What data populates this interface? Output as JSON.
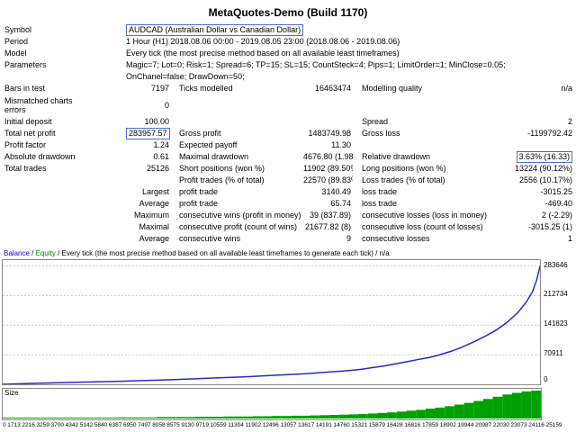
{
  "title": "MetaQuotes-Demo (Build 1170)",
  "report": {
    "symbol": {
      "label": "Symbol",
      "value": "AUDCAD (Australian Dollar vs Canadian Dollar)"
    },
    "period": {
      "label": "Period",
      "value": "1 Hour (H1) 2018.08.06 00:00 - 2019.08.05 23:00 (2018.08.06 - 2019.08.06)"
    },
    "model": {
      "label": "Model",
      "value": "Every tick (the most precise method based on all available least timeframes)"
    },
    "parameters": {
      "label": "Parameters",
      "value": "Magic=7; Lot=0; Risk=1; Spread=6; TP=15; SL=15; CountSteck=4; Pips=1; LimitOrder=1; MinClose=0.05; OnChanel=false; DrawDown=50;"
    },
    "bars_in_test": {
      "label": "Bars in test",
      "value": "7197"
    },
    "ticks_modelled": {
      "label": "Ticks modelled",
      "value": "16463474"
    },
    "modelling_quality": {
      "label": "Modelling quality",
      "value": "n/a"
    },
    "mismatched": {
      "label": "Mismatched charts errors",
      "value": "0"
    },
    "initial_deposit": {
      "label": "Initial deposit",
      "value": "100.00"
    },
    "spread": {
      "label": "Spread",
      "value": "2"
    },
    "total_net_profit": {
      "label": "Total net profit",
      "value": "283957.57"
    },
    "gross_profit": {
      "label": "Gross profit",
      "value": "1483749.98"
    },
    "gross_loss": {
      "label": "Gross loss",
      "value": "-1199792.42"
    },
    "profit_factor": {
      "label": "Profit factor",
      "value": "1.24"
    },
    "expected_payoff": {
      "label": "Expected payoff",
      "value": "11.30"
    },
    "absolute_drawdown": {
      "label": "Absolute drawdown",
      "value": "0.61"
    },
    "maximal_drawdown": {
      "label": "Maximal drawdown",
      "value": "4676.80 (1.98%)"
    },
    "relative_drawdown": {
      "label": "Relative drawdown",
      "value": "3.63% (16.33)"
    },
    "total_trades": {
      "label": "Total trades",
      "value": "25126"
    },
    "short_positions": {
      "label": "Short positions (won %)",
      "value": "11902 (89.50%)"
    },
    "long_positions": {
      "label": "Long positions (won %)",
      "value": "13224 (90.12%)"
    },
    "profit_trades": {
      "label": "Profit trades (% of total)",
      "value": "22570 (89.83%)"
    },
    "loss_trades": {
      "label": "Loss trades (% of total)",
      "value": "2556 (10.17%)"
    },
    "largest": {
      "label": "Largest",
      "profit_label": "profit trade",
      "profit": "3140.49",
      "loss_label": "loss trade",
      "loss": "-3015.25"
    },
    "average_trade": {
      "label": "Average",
      "profit_label": "profit trade",
      "profit": "65.74",
      "loss_label": "loss trade",
      "loss": "-469.40"
    },
    "maximum_consecutive": {
      "label": "Maximum",
      "wins_label": "consecutive wins (profit in money)",
      "wins": "39 (837.89)",
      "losses_label": "consecutive losses (loss in money)",
      "losses": "2 (-2.29)"
    },
    "maximal_consecutive": {
      "label": "Maximal",
      "profit_label": "consecutive profit (count of wins)",
      "profit": "21677.82 (8)",
      "loss_label": "consecutive loss (count of losses)",
      "loss": "-3015.25 (1)"
    },
    "average_consecutive": {
      "label": "Average",
      "wins_label": "consecutive wins",
      "wins": "9",
      "losses_label": "consecutive losses",
      "losses": "1"
    }
  },
  "chart_data": {
    "type": "line",
    "legend": {
      "balance_label": "Balance",
      "equity_label": "Equity",
      "sep": " / ",
      "model_note": "Every tick (the most precise method based on all available least timeframes to generate each tick) / n/a"
    },
    "size_label": "Size",
    "colors": {
      "balance": "#2929c8",
      "equity": "#008000",
      "size_bars": "#00a000",
      "highlight_box": "#4a6fc9"
    },
    "x_range": [
      0,
      25159
    ],
    "y_range": [
      0,
      298000
    ],
    "grid": "horizontal-dotted",
    "legend_position": "top-left",
    "y_ticks": [
      283646,
      212734,
      141823,
      70911,
      0
    ],
    "x_ticks": [
      0,
      1713,
      2216,
      3259,
      3700,
      4342,
      5142,
      5840,
      6387,
      6950,
      7497,
      8058,
      8575,
      9130,
      9719,
      10559,
      11304,
      11902,
      12496,
      13057,
      13617,
      14191,
      14760,
      15321,
      15879,
      16428,
      16816,
      17859,
      18902,
      19944,
      20987,
      22030,
      23073,
      24116,
      25159
    ],
    "balance_series": [
      [
        0,
        100
      ],
      [
        1000,
        1500
      ],
      [
        2216,
        3200
      ],
      [
        3259,
        4500
      ],
      [
        4342,
        5800
      ],
      [
        5142,
        6800
      ],
      [
        5840,
        7800
      ],
      [
        6950,
        9500
      ],
      [
        8058,
        11500
      ],
      [
        9130,
        13500
      ],
      [
        9719,
        14800
      ],
      [
        10559,
        16500
      ],
      [
        11304,
        18000
      ],
      [
        11902,
        19500
      ],
      [
        12496,
        21000
      ],
      [
        13057,
        22500
      ],
      [
        13617,
        24000
      ],
      [
        14191,
        25500
      ],
      [
        14760,
        27500
      ],
      [
        15321,
        29500
      ],
      [
        15879,
        31500
      ],
      [
        16428,
        34000
      ],
      [
        16816,
        36000
      ],
      [
        17300,
        40000
      ],
      [
        17859,
        44000
      ],
      [
        18400,
        49000
      ],
      [
        18902,
        54000
      ],
      [
        19400,
        59000
      ],
      [
        19944,
        64000
      ],
      [
        20400,
        70000
      ],
      [
        20987,
        79000
      ],
      [
        21500,
        89000
      ],
      [
        22030,
        101000
      ],
      [
        22500,
        113000
      ],
      [
        23073,
        129000
      ],
      [
        23600,
        148000
      ],
      [
        24116,
        172000
      ],
      [
        24500,
        196000
      ],
      [
        24800,
        222000
      ],
      [
        25000,
        250000
      ],
      [
        25159,
        283646
      ]
    ],
    "size_bars": [
      0.02,
      0.02,
      0.02,
      0.02,
      0.02,
      0.02,
      0.03,
      0.03,
      0.03,
      0.03,
      0.03,
      0.03,
      0.04,
      0.04,
      0.04,
      0.04,
      0.05,
      0.05,
      0.05,
      0.05,
      0.06,
      0.06,
      0.06,
      0.07,
      0.07,
      0.07,
      0.08,
      0.08,
      0.09,
      0.09,
      0.1,
      0.1,
      0.11,
      0.12,
      0.13,
      0.14,
      0.15,
      0.16,
      0.18,
      0.2,
      0.22,
      0.25,
      0.28,
      0.31,
      0.35,
      0.39,
      0.44,
      0.5,
      0.56,
      0.63,
      0.7,
      0.78,
      0.86,
      0.92,
      0.97,
      1.0
    ]
  }
}
